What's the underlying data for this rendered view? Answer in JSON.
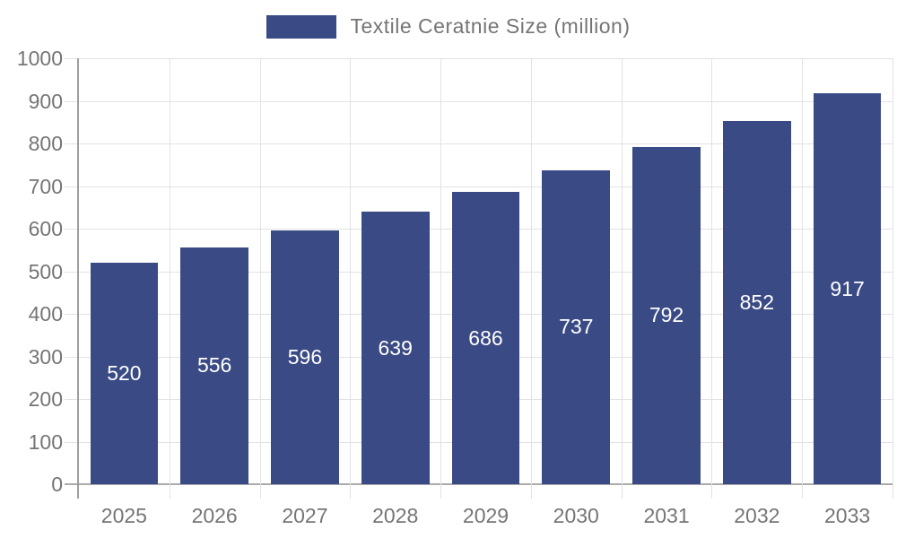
{
  "chart_data": {
    "type": "bar",
    "title": "Textile Ceratnie Size (million)",
    "categories": [
      "2025",
      "2026",
      "2027",
      "2028",
      "2029",
      "2030",
      "2031",
      "2032",
      "2033"
    ],
    "values": [
      520,
      556,
      596,
      639,
      686,
      737,
      792,
      852,
      917
    ],
    "xlabel": "",
    "ylabel": "",
    "ylim": [
      0,
      1000
    ],
    "ytick_step": 100,
    "grid": true,
    "legend_position": "top-center",
    "legend": {
      "label": "Textile Ceratnie Size (million)",
      "swatch_color": "#3a4a85"
    },
    "colors": {
      "bar": "#3a4a85",
      "bar_label": "#ffffff",
      "grid": "#e2e2e2",
      "axis_line": "#9e9e9e",
      "zero_line": "#ababab",
      "tick_text": "#757575",
      "background": "#ffffff"
    }
  }
}
